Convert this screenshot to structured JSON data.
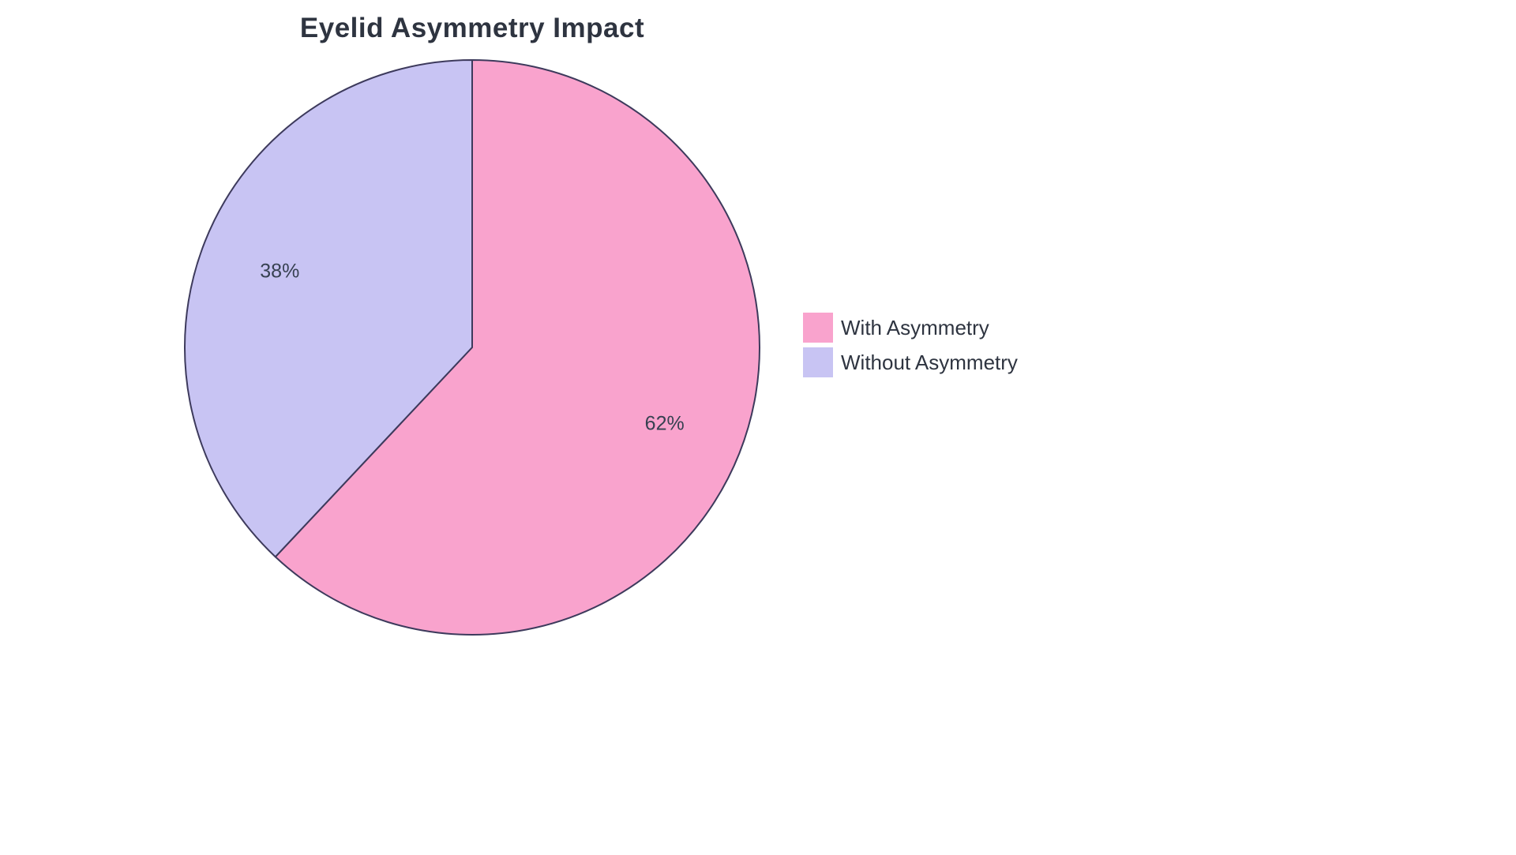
{
  "chart_data": {
    "type": "pie",
    "title": "Eyelid Asymmetry Impact",
    "categories": [
      "With Asymmetry",
      "Without Asymmetry"
    ],
    "values": [
      62,
      38
    ],
    "slice_labels": [
      "62%",
      "38%"
    ],
    "colors": [
      "#F9A3CD",
      "#C8C4F3"
    ],
    "legend_position": "right",
    "start_angle": "top",
    "direction": "clockwise",
    "stroke_color": "#3D3A5C",
    "title_color": "#2E3440",
    "label_color": "#374151",
    "background": "#FFFFFF"
  }
}
